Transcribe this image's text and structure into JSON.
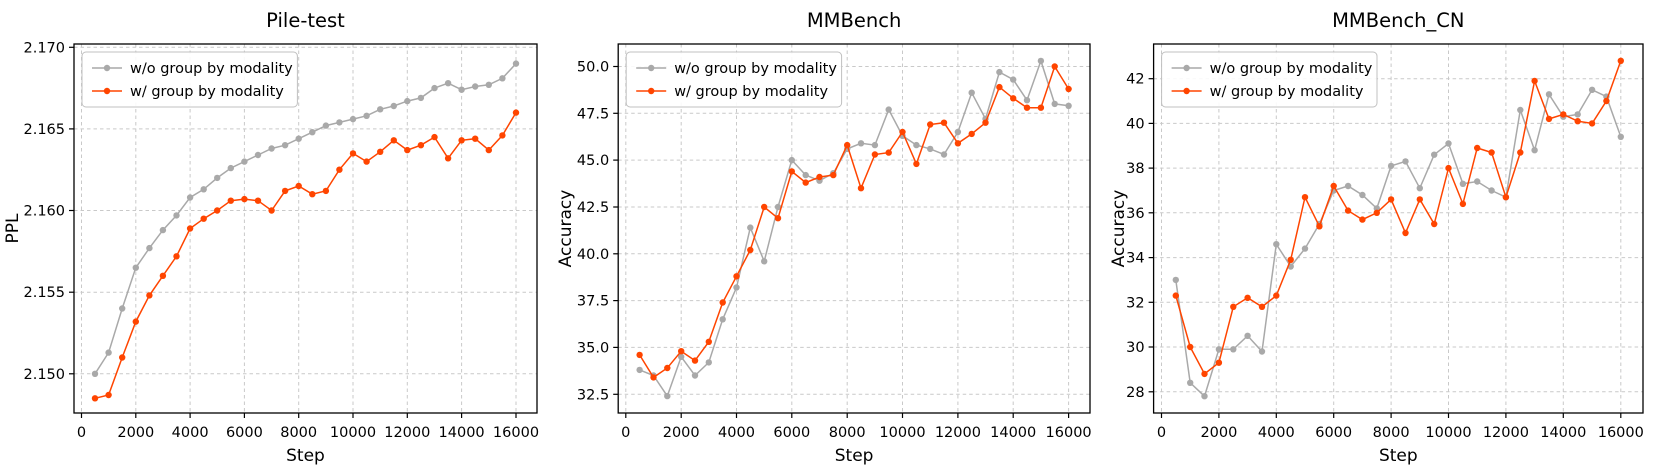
{
  "figure": {
    "background": "#ffffff"
  },
  "colors": {
    "series_gray": "#a9a9a9",
    "series_orange": "#ff4500",
    "grid": "#c9c9c9",
    "axis": "#000000",
    "legend_border": "#c0c0c0",
    "legend_fill": "#ffffff"
  },
  "legend_labels": {
    "without_group": "w/o group by modality",
    "with_group": "w/ group by modality"
  },
  "chart_data": [
    {
      "type": "line",
      "title": "Pile-test",
      "xlabel": "Step",
      "ylabel": "PPL",
      "grid": true,
      "legend_position": "upper left",
      "xlim": [
        -275,
        16775
      ],
      "ylim": [
        2.1476,
        2.1702
      ],
      "xticks": [
        0,
        2000,
        4000,
        6000,
        8000,
        10000,
        12000,
        14000,
        16000
      ],
      "yticks": [
        2.15,
        2.155,
        2.16,
        2.165,
        2.17
      ],
      "ytick_decimals": 3,
      "x": [
        500,
        1000,
        1500,
        2000,
        2500,
        3000,
        3500,
        4000,
        4500,
        5000,
        5500,
        6000,
        6500,
        7000,
        7500,
        8000,
        8500,
        9000,
        9500,
        10000,
        10500,
        11000,
        11500,
        12000,
        12500,
        13000,
        13500,
        14000,
        14500,
        15000,
        15500,
        16000
      ],
      "series": [
        {
          "name": "w/o group by modality",
          "color": "#a9a9a9",
          "values": [
            2.15,
            2.1513,
            2.154,
            2.1565,
            2.1577,
            2.1588,
            2.1597,
            2.1608,
            2.1613,
            2.162,
            2.1626,
            2.163,
            2.1634,
            2.1638,
            2.164,
            2.1644,
            2.1648,
            2.1652,
            2.1654,
            2.1656,
            2.1658,
            2.1662,
            2.1664,
            2.1667,
            2.1669,
            2.1675,
            2.1678,
            2.1674,
            2.1676,
            2.1677,
            2.1681,
            2.169
          ]
        },
        {
          "name": "w/ group by modality",
          "color": "#ff4500",
          "values": [
            2.1485,
            2.1487,
            2.151,
            2.1532,
            2.1548,
            2.156,
            2.1572,
            2.1589,
            2.1595,
            2.16,
            2.1606,
            2.1607,
            2.1606,
            2.16,
            2.1612,
            2.1615,
            2.161,
            2.1612,
            2.1625,
            2.1635,
            2.163,
            2.1636,
            2.1643,
            2.1637,
            2.164,
            2.1645,
            2.1632,
            2.1643,
            2.1644,
            2.1637,
            2.1646,
            2.166
          ]
        }
      ]
    },
    {
      "type": "line",
      "title": "MMBench",
      "xlabel": "Step",
      "ylabel": "Accuracy",
      "grid": true,
      "legend_position": "upper left",
      "xlim": [
        -275,
        16775
      ],
      "ylim": [
        31.5,
        51.2
      ],
      "xticks": [
        0,
        2000,
        4000,
        6000,
        8000,
        10000,
        12000,
        14000,
        16000
      ],
      "yticks": [
        32.5,
        35.0,
        37.5,
        40.0,
        42.5,
        45.0,
        47.5,
        50.0
      ],
      "ytick_decimals": 1,
      "x": [
        500,
        1000,
        1500,
        2000,
        2500,
        3000,
        3500,
        4000,
        4500,
        5000,
        5500,
        6000,
        6500,
        7000,
        7500,
        8000,
        8500,
        9000,
        9500,
        10000,
        10500,
        11000,
        11500,
        12000,
        12500,
        13000,
        13500,
        14000,
        14500,
        15000,
        15500,
        16000
      ],
      "series": [
        {
          "name": "w/o group by modality",
          "color": "#a9a9a9",
          "values": [
            33.8,
            33.5,
            32.4,
            34.5,
            33.5,
            34.2,
            36.5,
            38.2,
            41.4,
            39.6,
            42.5,
            45.0,
            44.2,
            43.9,
            44.3,
            45.6,
            45.9,
            45.8,
            47.7,
            46.3,
            45.8,
            45.6,
            45.3,
            46.5,
            48.6,
            47.2,
            49.7,
            49.3,
            48.2,
            50.3,
            48.0,
            47.9
          ]
        },
        {
          "name": "w/ group by modality",
          "color": "#ff4500",
          "values": [
            34.6,
            33.4,
            33.9,
            34.8,
            34.3,
            35.3,
            37.4,
            38.8,
            40.2,
            42.5,
            41.9,
            44.4,
            43.8,
            44.1,
            44.2,
            45.8,
            43.5,
            45.3,
            45.4,
            46.5,
            44.8,
            46.9,
            47.0,
            45.9,
            46.4,
            47.0,
            48.9,
            48.3,
            47.8,
            47.8,
            50.0,
            48.8
          ]
        }
      ]
    },
    {
      "type": "line",
      "title": "MMBench_CN",
      "xlabel": "Step",
      "ylabel": "Accuracy",
      "grid": true,
      "legend_position": "upper left",
      "xlim": [
        -275,
        16775
      ],
      "ylim": [
        27.05,
        43.55
      ],
      "xticks": [
        0,
        2000,
        4000,
        6000,
        8000,
        10000,
        12000,
        14000,
        16000
      ],
      "yticks": [
        28,
        30,
        32,
        34,
        36,
        38,
        40,
        42
      ],
      "ytick_decimals": 0,
      "x": [
        500,
        1000,
        1500,
        2000,
        2500,
        3000,
        3500,
        4000,
        4500,
        5000,
        5500,
        6000,
        6500,
        7000,
        7500,
        8000,
        8500,
        9000,
        9500,
        10000,
        10500,
        11000,
        11500,
        12000,
        12500,
        13000,
        13500,
        14000,
        14500,
        15000,
        15500,
        16000
      ],
      "series": [
        {
          "name": "w/o group by modality",
          "color": "#a9a9a9",
          "values": [
            33.0,
            28.4,
            27.8,
            29.9,
            29.9,
            30.5,
            29.8,
            34.6,
            33.6,
            34.4,
            35.5,
            37.0,
            37.2,
            36.8,
            36.2,
            38.1,
            38.3,
            37.1,
            38.6,
            39.1,
            37.3,
            37.4,
            37.0,
            36.7,
            40.6,
            38.8,
            41.3,
            40.3,
            40.4,
            41.5,
            41.2,
            39.4
          ]
        },
        {
          "name": "w/ group by modality",
          "color": "#ff4500",
          "values": [
            32.3,
            30.0,
            28.8,
            29.3,
            31.8,
            32.2,
            31.8,
            32.3,
            33.9,
            36.7,
            35.4,
            37.2,
            36.1,
            35.7,
            36.0,
            36.6,
            35.1,
            36.6,
            35.5,
            38.0,
            36.4,
            38.9,
            38.7,
            36.7,
            38.7,
            41.9,
            40.2,
            40.4,
            40.1,
            40.0,
            41.0,
            42.8
          ]
        }
      ]
    }
  ]
}
